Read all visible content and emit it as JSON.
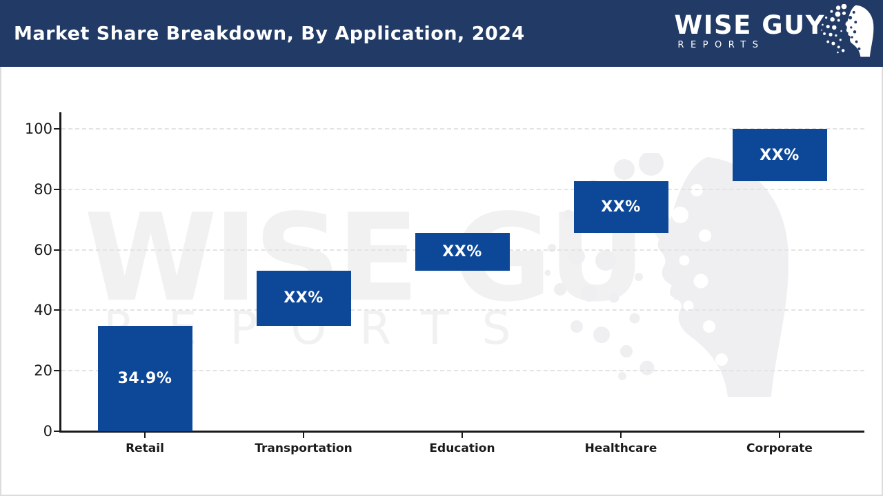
{
  "header": {
    "title": "Market Share Breakdown, By Application, 2024",
    "logo": {
      "name_line": "WISE GUY",
      "sub_line": "REPORTS"
    }
  },
  "watermark": {
    "name_line": "WISE GUY",
    "sub_line": "REPORTS"
  },
  "colors": {
    "header_bg": "#213a66",
    "bar": "#0c4798",
    "bar_label": "#ffffff",
    "axis": "#1a1a1a",
    "gridline": "#e3e3e3",
    "watermark": "#f1f1f2",
    "frame_border": "#dcdcdc"
  },
  "chart_data": {
    "type": "bar",
    "subtype": "waterfall",
    "title": "Market Share Breakdown, By Application, 2024",
    "categories": [
      "Retail",
      "Transportation",
      "Education",
      "Healthcare",
      "Corporate"
    ],
    "segments": [
      {
        "category": "Retail",
        "start": 0,
        "end": 34.9,
        "label": "34.9%"
      },
      {
        "category": "Transportation",
        "start": 34.9,
        "end": 53.1,
        "label": "XX%"
      },
      {
        "category": "Education",
        "start": 53.1,
        "end": 65.5,
        "label": "XX%"
      },
      {
        "category": "Healthcare",
        "start": 65.5,
        "end": 82.6,
        "label": "XX%"
      },
      {
        "category": "Corporate",
        "start": 82.6,
        "end": 100,
        "label": "XX%"
      }
    ],
    "xlabel": "",
    "ylabel": "",
    "yticks": [
      0,
      20,
      40,
      60,
      80,
      100
    ],
    "ylim": [
      0,
      105
    ],
    "grid": "horizontal-dashed",
    "legend": "none",
    "bar_color": "#0c4798",
    "label_color": "#ffffff"
  }
}
